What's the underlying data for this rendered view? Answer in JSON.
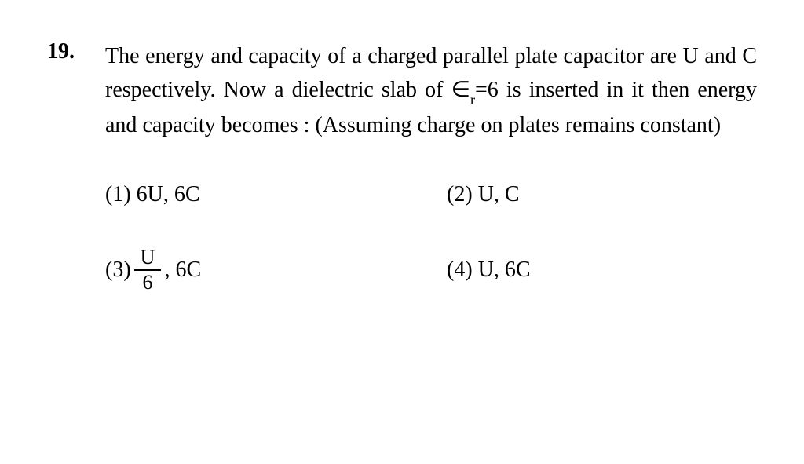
{
  "question": {
    "number": "19.",
    "text_line1": "The energy and capacity of a charged parallel plate",
    "text_line2": "capacitor are U and C respectively. Now a dielectric",
    "text_line3_prefix": "slab of ",
    "epsilon_symbol": "∈",
    "epsilon_subscript": "r",
    "epsilon_value": "=6",
    "text_line3_suffix": " is inserted in it then energy and",
    "text_line4": "capacity becomes : (Assuming charge on plates",
    "text_line5": "remains constant)"
  },
  "options": {
    "opt1": {
      "label": "(1) 6U, 6C"
    },
    "opt2": {
      "label": "(2) U, C"
    },
    "opt3": {
      "prefix": "(3) ",
      "fraction_top": "U",
      "fraction_bottom": "6",
      "suffix": ", 6C"
    },
    "opt4": {
      "label": "(4) U, 6C"
    }
  },
  "styling": {
    "background_color": "#ffffff",
    "text_color": "#000000",
    "font_family": "Georgia, Times New Roman, serif",
    "question_fontsize": 28,
    "option_fontsize": 28,
    "number_fontweight": "bold"
  }
}
